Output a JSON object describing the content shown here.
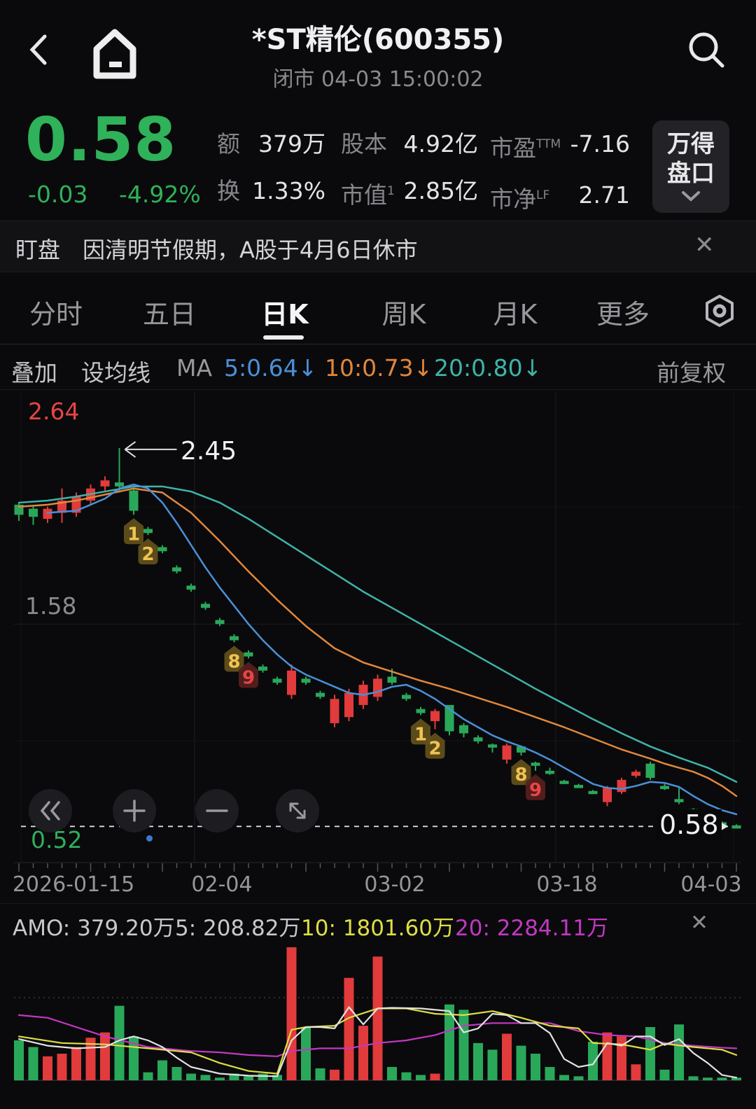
{
  "header": {
    "title": "*ST精伦(600355)",
    "subtitle": "闭市 04-03 15:00:02"
  },
  "quote": {
    "price": "0.58",
    "change": "-0.03",
    "change_pct": "-4.92%"
  },
  "stats": {
    "amount_label": "额",
    "amount": "379万",
    "turnover_label": "换",
    "turnover": "1.33%",
    "share_capital_label": "股本",
    "share_capital": "4.92亿",
    "market_cap_label": "市值",
    "market_cap_sup": "1",
    "market_cap": "2.85亿",
    "pe_label": "市盈",
    "pe_sup": "TTM",
    "pe": "-7.16",
    "pb_label": "市净",
    "pb_sup": "LF",
    "pb": "2.71"
  },
  "panel_button": {
    "line1": "万得",
    "line2": "盘口"
  },
  "notice": {
    "tag": "盯盘",
    "text": "因清明节假期，A股于4月6日休市",
    "close": "✕"
  },
  "tabs": {
    "items": [
      "分时",
      "五日",
      "日K",
      "周K",
      "月K",
      "更多"
    ],
    "active_index": 2
  },
  "ma_bar": {
    "overlay": "叠加",
    "set_ma": "设均线",
    "ma_label": "MA",
    "ma5": "5:0.64↓",
    "ma10": "10:0.73↓",
    "ma20": "20:0.80↓",
    "right": "前复权"
  },
  "amo_bar": {
    "amo": "AMO: 379.20万",
    "ma5": "5: 208.82万",
    "ma10": "10: 1801.60万",
    "ma20": "20: 2284.11万",
    "close": "✕"
  },
  "colors": {
    "up": "#e13b3b",
    "down": "#2aa85a",
    "price_green": "#2fb259",
    "label_red": "#e54545",
    "label_gray": "#8a8a8e",
    "label_green": "#2fae5c",
    "ma5": "#4a90d9",
    "ma10": "#e0873c",
    "ma20": "#3fb3a8",
    "vol_ma5": "#e2e2e2",
    "vol_ma10": "#dede44",
    "vol_ma20": "#c238c2",
    "current_line": "#e8e8e8",
    "badge_gold_bg": "#63511c",
    "badge_gold_text": "#f0c252",
    "badge_red_bg": "#571f1f",
    "badge_red_text": "#e84545",
    "grid": "#1d1d21",
    "tick": "#55555a"
  },
  "chart_data": {
    "type": "candlestick+volume",
    "price_axis": {
      "top": "2.64",
      "mid": "1.58",
      "bottom": "0.52",
      "current": "0.58",
      "high_annotation": "2.45"
    },
    "x_axis": {
      "labels": [
        "2026-01-15",
        "02-04",
        "03-02",
        "03-18",
        "04-03"
      ],
      "label_centers": [
        105,
        317,
        564,
        810,
        1016
      ]
    },
    "candles": [
      [
        2.17,
        2.12,
        2.18,
        2.09,
        "g"
      ],
      [
        2.15,
        2.11,
        2.16,
        2.07,
        "g"
      ],
      [
        2.1,
        2.15,
        2.16,
        2.08,
        "r"
      ],
      [
        2.13,
        2.19,
        2.25,
        2.08,
        "r"
      ],
      [
        2.13,
        2.21,
        2.23,
        2.11,
        "r"
      ],
      [
        2.19,
        2.25,
        2.27,
        2.17,
        "r"
      ],
      [
        2.26,
        2.29,
        2.31,
        2.24,
        "r"
      ],
      [
        2.28,
        2.26,
        2.45,
        2.23,
        "g"
      ],
      [
        2.24,
        2.14,
        2.25,
        2.12,
        "g"
      ],
      [
        2.05,
        2.03,
        2.06,
        2.02,
        "g"
      ],
      [
        1.96,
        1.94,
        1.97,
        1.93,
        "g"
      ],
      [
        1.86,
        1.84,
        1.87,
        1.83,
        "g"
      ],
      [
        1.77,
        1.75,
        1.78,
        1.74,
        "g"
      ],
      [
        1.68,
        1.66,
        1.69,
        1.65,
        "g"
      ],
      [
        1.6,
        1.58,
        1.61,
        1.57,
        "g"
      ],
      [
        1.52,
        1.5,
        1.53,
        1.49,
        "g"
      ],
      [
        1.44,
        1.42,
        1.45,
        1.41,
        "g"
      ],
      [
        1.37,
        1.35,
        1.38,
        1.34,
        "g"
      ],
      [
        1.31,
        1.29,
        1.32,
        1.28,
        "g"
      ],
      [
        1.23,
        1.35,
        1.38,
        1.21,
        "r"
      ],
      [
        1.31,
        1.29,
        1.32,
        1.28,
        "g"
      ],
      [
        1.24,
        1.22,
        1.25,
        1.21,
        "g"
      ],
      [
        1.09,
        1.21,
        1.23,
        1.07,
        "r"
      ],
      [
        1.12,
        1.24,
        1.26,
        1.1,
        "r"
      ],
      [
        1.18,
        1.28,
        1.3,
        1.16,
        "r"
      ],
      [
        1.22,
        1.31,
        1.33,
        1.2,
        "r"
      ],
      [
        1.32,
        1.29,
        1.36,
        1.28,
        "g"
      ],
      [
        1.23,
        1.21,
        1.24,
        1.2,
        "g"
      ],
      [
        1.16,
        1.14,
        1.17,
        1.13,
        "g"
      ],
      [
        1.1,
        1.15,
        1.16,
        1.06,
        "r"
      ],
      [
        1.18,
        1.05,
        1.18,
        1.03,
        "g"
      ],
      [
        1.08,
        1.04,
        1.09,
        1.02,
        "g"
      ],
      [
        1.02,
        1.0,
        1.03,
        0.99,
        "g"
      ],
      [
        0.985,
        0.975,
        0.99,
        0.945,
        "g"
      ],
      [
        0.91,
        0.98,
        0.99,
        0.89,
        "r"
      ],
      [
        0.975,
        0.945,
        0.98,
        0.93,
        "g"
      ],
      [
        0.895,
        0.885,
        0.9,
        0.855,
        "g"
      ],
      [
        0.855,
        0.845,
        0.87,
        0.835,
        "g"
      ],
      [
        0.805,
        0.795,
        0.81,
        0.79,
        "g"
      ],
      [
        0.785,
        0.775,
        0.79,
        0.77,
        "g"
      ],
      [
        0.755,
        0.745,
        0.76,
        0.74,
        "g"
      ],
      [
        0.7,
        0.77,
        0.78,
        0.68,
        "r"
      ],
      [
        0.75,
        0.81,
        0.82,
        0.74,
        "r"
      ],
      [
        0.83,
        0.85,
        0.86,
        0.82,
        "r"
      ],
      [
        0.89,
        0.82,
        0.9,
        0.81,
        "g"
      ],
      [
        0.78,
        0.77,
        0.79,
        0.76,
        "g"
      ],
      [
        0.715,
        0.7,
        0.77,
        0.69,
        "g"
      ],
      [
        0.665,
        0.655,
        0.67,
        0.65,
        "g"
      ],
      [
        0.625,
        0.615,
        0.63,
        0.61,
        "g"
      ],
      [
        0.6,
        0.59,
        0.605,
        0.585,
        "g"
      ],
      [
        0.585,
        0.58,
        0.59,
        0.575,
        "g"
      ]
    ],
    "badges": [
      {
        "i": 8,
        "n": "1",
        "c": "gold"
      },
      {
        "i": 9,
        "n": "2",
        "c": "gold"
      },
      {
        "i": 15,
        "n": "8",
        "c": "gold"
      },
      {
        "i": 16,
        "n": "9",
        "c": "red"
      },
      {
        "i": 28,
        "n": "1",
        "c": "gold"
      },
      {
        "i": 29,
        "n": "2",
        "c": "gold"
      },
      {
        "i": 35,
        "n": "8",
        "c": "gold"
      },
      {
        "i": 36,
        "n": "9",
        "c": "red"
      }
    ],
    "price_ma": {
      "ma5": [
        [
          2,
          2.13
        ],
        [
          4,
          2.14
        ],
        [
          6,
          2.2
        ],
        [
          7,
          2.25
        ],
        [
          8,
          2.27
        ],
        [
          9,
          2.25
        ],
        [
          10,
          2.18
        ],
        [
          11,
          2.08
        ],
        [
          12,
          1.97
        ],
        [
          13,
          1.86
        ],
        [
          14,
          1.76
        ],
        [
          15,
          1.67
        ],
        [
          16,
          1.58
        ],
        [
          17,
          1.5
        ],
        [
          18,
          1.43
        ],
        [
          19,
          1.37
        ],
        [
          20,
          1.33
        ],
        [
          21,
          1.3
        ],
        [
          22,
          1.27
        ],
        [
          23,
          1.24
        ],
        [
          24,
          1.23
        ],
        [
          25,
          1.245
        ],
        [
          26,
          1.27
        ],
        [
          27,
          1.28
        ],
        [
          28,
          1.25
        ],
        [
          29,
          1.21
        ],
        [
          30,
          1.16
        ],
        [
          31,
          1.11
        ],
        [
          32,
          1.07
        ],
        [
          33,
          1.03
        ],
        [
          34,
          1.0
        ],
        [
          35,
          0.975
        ],
        [
          36,
          0.945
        ],
        [
          37,
          0.91
        ],
        [
          38,
          0.87
        ],
        [
          39,
          0.83
        ],
        [
          40,
          0.79
        ],
        [
          41,
          0.77
        ],
        [
          42,
          0.765
        ],
        [
          43,
          0.78
        ],
        [
          44,
          0.8
        ],
        [
          45,
          0.795
        ],
        [
          46,
          0.775
        ],
        [
          47,
          0.73
        ],
        [
          48,
          0.69
        ],
        [
          49,
          0.66
        ],
        [
          50,
          0.64
        ]
      ],
      "ma10": [
        [
          0,
          2.16
        ],
        [
          2,
          2.17
        ],
        [
          4,
          2.19
        ],
        [
          6,
          2.22
        ],
        [
          8,
          2.25
        ],
        [
          10,
          2.23
        ],
        [
          12,
          2.13
        ],
        [
          14,
          1.99
        ],
        [
          16,
          1.84
        ],
        [
          18,
          1.7
        ],
        [
          20,
          1.57
        ],
        [
          22,
          1.46
        ],
        [
          24,
          1.39
        ],
        [
          26,
          1.345
        ],
        [
          28,
          1.3
        ],
        [
          30,
          1.26
        ],
        [
          32,
          1.215
        ],
        [
          34,
          1.17
        ],
        [
          36,
          1.12
        ],
        [
          38,
          1.07
        ],
        [
          40,
          1.015
        ],
        [
          42,
          0.96
        ],
        [
          44,
          0.915
        ],
        [
          45,
          0.89
        ],
        [
          46,
          0.87
        ],
        [
          47,
          0.85
        ],
        [
          48,
          0.82
        ],
        [
          49,
          0.78
        ],
        [
          50,
          0.73
        ]
      ],
      "ma20": [
        [
          0,
          2.18
        ],
        [
          2,
          2.19
        ],
        [
          4,
          2.21
        ],
        [
          6,
          2.235
        ],
        [
          8,
          2.26
        ],
        [
          10,
          2.26
        ],
        [
          12,
          2.235
        ],
        [
          14,
          2.18
        ],
        [
          16,
          2.1
        ],
        [
          18,
          2.01
        ],
        [
          20,
          1.92
        ],
        [
          22,
          1.83
        ],
        [
          24,
          1.74
        ],
        [
          26,
          1.66
        ],
        [
          28,
          1.58
        ],
        [
          30,
          1.5
        ],
        [
          32,
          1.42
        ],
        [
          34,
          1.34
        ],
        [
          36,
          1.26
        ],
        [
          38,
          1.185
        ],
        [
          40,
          1.11
        ],
        [
          42,
          1.04
        ],
        [
          44,
          0.975
        ],
        [
          46,
          0.92
        ],
        [
          48,
          0.87
        ],
        [
          50,
          0.8
        ]
      ]
    },
    "volumes": [
      0.3,
      0.25,
      0.18,
      0.2,
      0.25,
      0.32,
      0.36,
      0.56,
      0.33,
      0.06,
      0.15,
      0.1,
      0.05,
      0.04,
      0.02,
      0.05,
      0.03,
      0.05,
      0.04,
      1.0,
      0.4,
      0.09,
      0.08,
      0.77,
      0.41,
      0.93,
      0.1,
      0.06,
      0.04,
      0.05,
      0.57,
      0.53,
      0.28,
      0.23,
      0.35,
      0.26,
      0.2,
      0.1,
      0.04,
      0.03,
      0.29,
      0.36,
      0.33,
      0.12,
      0.4,
      0.08,
      0.42,
      0.03,
      0.02,
      0.02,
      0.02
    ],
    "vol_ma": {
      "ma5": [
        [
          0,
          0.31
        ],
        [
          2,
          0.26
        ],
        [
          4,
          0.24
        ],
        [
          6,
          0.25
        ],
        [
          7,
          0.3
        ],
        [
          8,
          0.33
        ],
        [
          9,
          0.3
        ],
        [
          10,
          0.25
        ],
        [
          11,
          0.17
        ],
        [
          12,
          0.1
        ],
        [
          14,
          0.05
        ],
        [
          16,
          0.035
        ],
        [
          18,
          0.03
        ],
        [
          19,
          0.3
        ],
        [
          20,
          0.4
        ],
        [
          21,
          0.4
        ],
        [
          22,
          0.39
        ],
        [
          23,
          0.55
        ],
        [
          24,
          0.42
        ],
        [
          25,
          0.54
        ],
        [
          26,
          0.545
        ],
        [
          28,
          0.54
        ],
        [
          30,
          0.52
        ],
        [
          31,
          0.36
        ],
        [
          32,
          0.39
        ],
        [
          33,
          0.5
        ],
        [
          34,
          0.49
        ],
        [
          35,
          0.43
        ],
        [
          36,
          0.43
        ],
        [
          37,
          0.355
        ],
        [
          38,
          0.16
        ],
        [
          39,
          0.1
        ],
        [
          40,
          0.12
        ],
        [
          41,
          0.28
        ],
        [
          42,
          0.26
        ],
        [
          43,
          0.33
        ],
        [
          44,
          0.33
        ],
        [
          45,
          0.265
        ],
        [
          46,
          0.31
        ],
        [
          47,
          0.205
        ],
        [
          48,
          0.13
        ],
        [
          49,
          0.04
        ],
        [
          50,
          0.02
        ]
      ],
      "ma10": [
        [
          0,
          0.33
        ],
        [
          3,
          0.28
        ],
        [
          6,
          0.27
        ],
        [
          9,
          0.24
        ],
        [
          12,
          0.21
        ],
        [
          14,
          0.13
        ],
        [
          16,
          0.07
        ],
        [
          18,
          0.05
        ],
        [
          19,
          0.38
        ],
        [
          20,
          0.4
        ],
        [
          22,
          0.41
        ],
        [
          23,
          0.47
        ],
        [
          25,
          0.54
        ],
        [
          27,
          0.54
        ],
        [
          29,
          0.5
        ],
        [
          31,
          0.49
        ],
        [
          33,
          0.52
        ],
        [
          35,
          0.47
        ],
        [
          37,
          0.41
        ],
        [
          39,
          0.39
        ],
        [
          40,
          0.28
        ],
        [
          42,
          0.27
        ],
        [
          43,
          0.25
        ],
        [
          44,
          0.23
        ],
        [
          45,
          0.275
        ],
        [
          47,
          0.25
        ],
        [
          49,
          0.23
        ],
        [
          50,
          0.19
        ]
      ],
      "ma20": [
        [
          0,
          0.49
        ],
        [
          2,
          0.47
        ],
        [
          4,
          0.4
        ],
        [
          6,
          0.33
        ],
        [
          9,
          0.25
        ],
        [
          12,
          0.22
        ],
        [
          14,
          0.21
        ],
        [
          16,
          0.19
        ],
        [
          18,
          0.18
        ],
        [
          19,
          0.22
        ],
        [
          21,
          0.24
        ],
        [
          23,
          0.24
        ],
        [
          25,
          0.28
        ],
        [
          27,
          0.3
        ],
        [
          29,
          0.34
        ],
        [
          31,
          0.41
        ],
        [
          33,
          0.43
        ],
        [
          35,
          0.43
        ],
        [
          37,
          0.43
        ],
        [
          39,
          0.37
        ],
        [
          41,
          0.34
        ],
        [
          43,
          0.33
        ],
        [
          45,
          0.28
        ],
        [
          47,
          0.26
        ],
        [
          49,
          0.245
        ],
        [
          50,
          0.24
        ]
      ]
    }
  }
}
